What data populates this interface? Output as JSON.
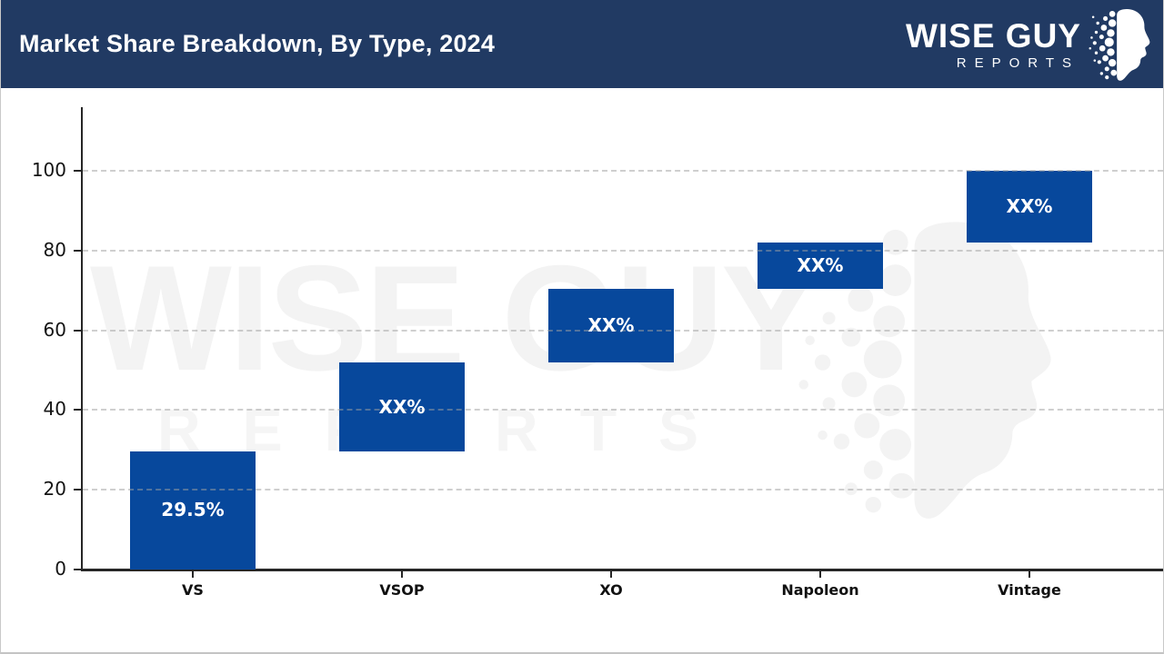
{
  "header": {
    "title": "Market Share Breakdown, By Type, 2024"
  },
  "logo": {
    "line1": "WISE GUY",
    "line2": "REPORTS"
  },
  "watermark": {
    "line1": "WISE GUY",
    "line2": "REPORTS"
  },
  "colors": {
    "header_background": "#213a63",
    "bar": "#07489c",
    "bar_label": "#ffffff",
    "gridline": "#d5d5d5",
    "axis": "#262626"
  },
  "chart_data": {
    "type": "bar",
    "subtype": "waterfall",
    "title": "Market Share Breakdown, By Type, 2024",
    "xlabel": "",
    "ylabel": "",
    "categories": [
      "VS",
      "VSOP",
      "XO",
      "Napoleon",
      "Vintage"
    ],
    "segments": [
      {
        "category": "VS",
        "start": 0,
        "end": 29.5,
        "value": 29.5,
        "label": "29.5%"
      },
      {
        "category": "VSOP",
        "start": 29.5,
        "end": 52,
        "value": 22.5,
        "label": "XX%"
      },
      {
        "category": "XO",
        "start": 52,
        "end": 70.5,
        "value": 18.5,
        "label": "XX%"
      },
      {
        "category": "Napoleon",
        "start": 70.5,
        "end": 82,
        "value": 11.5,
        "label": "XX%"
      },
      {
        "category": "Vintage",
        "start": 82,
        "end": 100,
        "value": 18,
        "label": "XX%"
      }
    ],
    "yticks": [
      0,
      20,
      40,
      60,
      80,
      100
    ],
    "ylim": [
      0,
      116
    ],
    "grid": "horizontal-dashed",
    "legend": "none",
    "bar_color": "#07489c",
    "bar_label_color": "#ffffff"
  }
}
